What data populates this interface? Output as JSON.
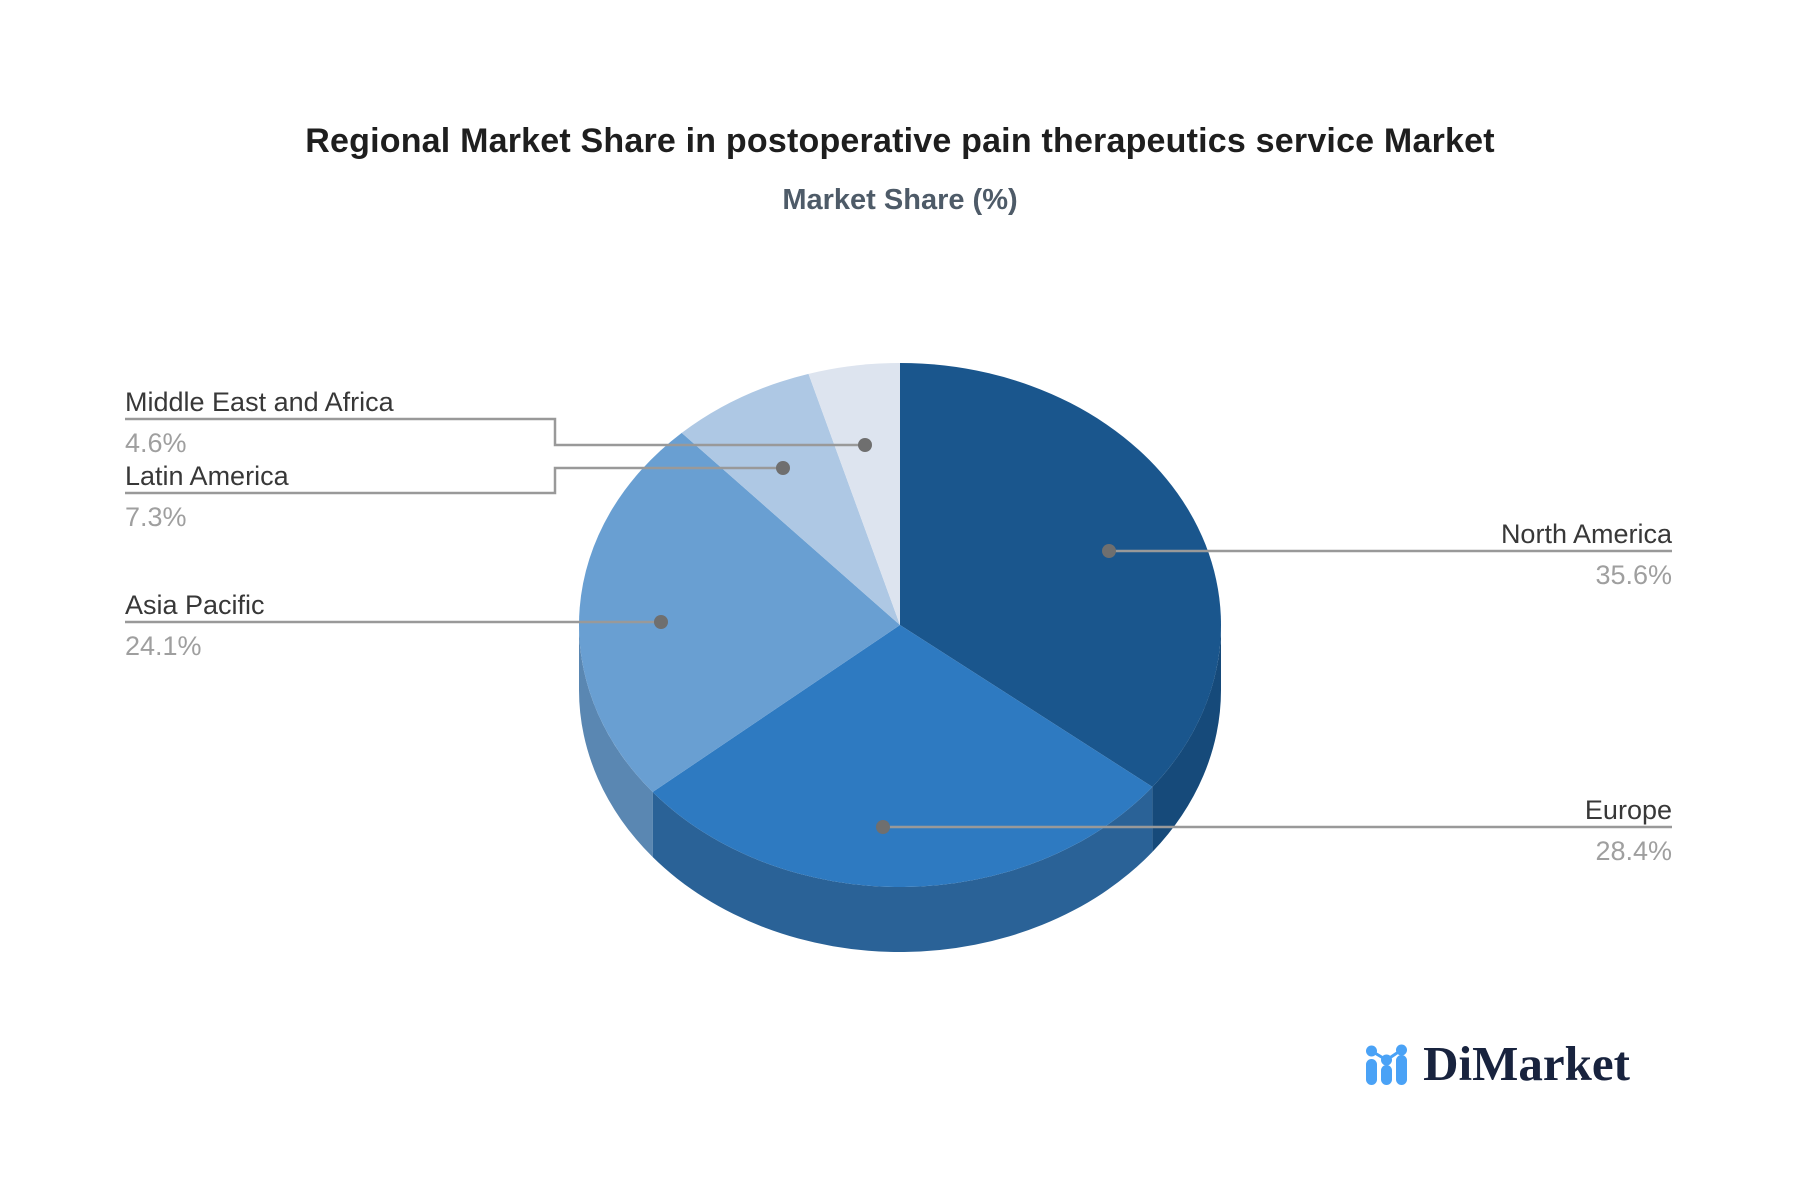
{
  "chart_data": {
    "type": "pie",
    "title": "Regional Market Share in postoperative pain therapeutics service Market",
    "subtitle": "Market Share (%)",
    "unit": "%",
    "style": "3d-pie",
    "direction": "clockwise",
    "start_angle_deg": 0,
    "slices": [
      {
        "label": "North America",
        "value": 35.6,
        "pct_label": "35.6%",
        "color": "#1a568d",
        "side_color": "#164a7a",
        "label_side": "right"
      },
      {
        "label": "Europe",
        "value": 28.4,
        "pct_label": "28.4%",
        "color": "#2e7ac1",
        "side_color": "#2a6297",
        "label_side": "right"
      },
      {
        "label": "Asia Pacific",
        "value": 24.1,
        "pct_label": "24.1%",
        "color": "#699fd2",
        "side_color": "#5a87b2",
        "label_side": "left"
      },
      {
        "label": "Latin America",
        "value": 7.3,
        "pct_label": "7.3%",
        "color": "#aec8e4",
        "side_color": "#93adc9",
        "label_side": "left"
      },
      {
        "label": "Middle East and Africa",
        "value": 4.6,
        "pct_label": "4.6%",
        "color": "#dde4ef",
        "side_color": "#bcc5d4",
        "label_side": "left"
      }
    ],
    "legend": "none",
    "grid": "off"
  },
  "colors": {
    "background": "#ffffff",
    "leader_line": "#999999",
    "leader_dot": "#6f6f6f",
    "label_text": "#383838",
    "pct_text": "#9f9f9f",
    "title_text": "#1e1e1e",
    "subtitle_text": "#4e5b68",
    "logo_icon": "#4aa2f6",
    "logo_text": "#18233e"
  },
  "logo": {
    "text": "DiMarket",
    "icon": "bar-chart-icon"
  }
}
